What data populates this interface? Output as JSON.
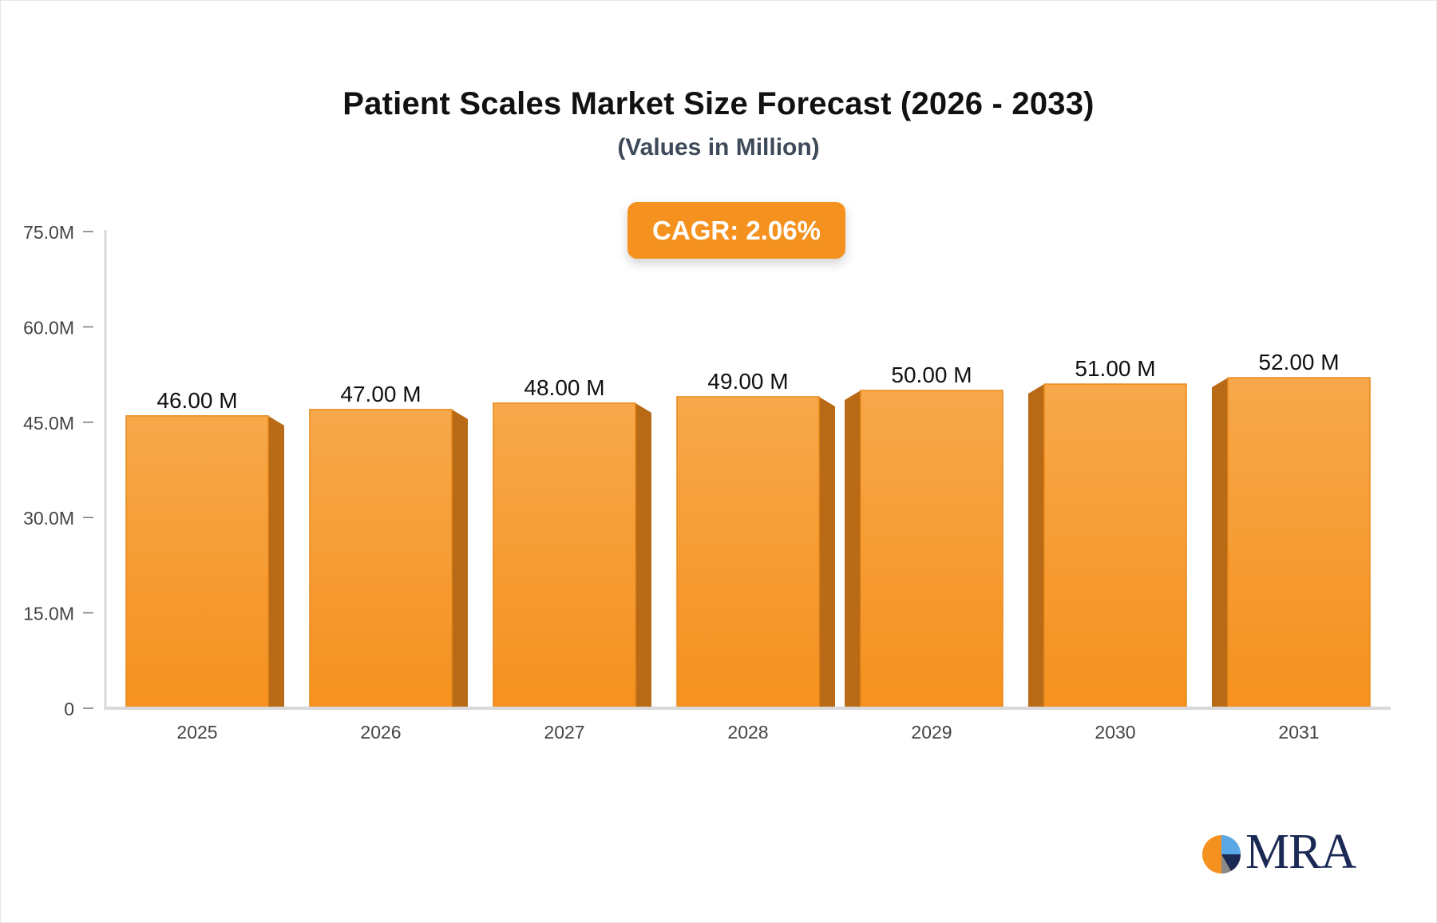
{
  "chart_data": {
    "type": "bar",
    "title": "Patient Scales Market Size Forecast (2026 - 2033)",
    "subtitle": "(Values in Million)",
    "categories": [
      "2025",
      "2026",
      "2027",
      "2028",
      "2029",
      "2030",
      "2031"
    ],
    "values": [
      46,
      47,
      48,
      49,
      50,
      51,
      52
    ],
    "value_labels": [
      "46.00 M",
      "47.00 M",
      "48.00 M",
      "49.00 M",
      "50.00 M",
      "51.00 M",
      "52.00 M"
    ],
    "ylim": [
      0,
      75
    ],
    "y_ticks": [
      0,
      15,
      30,
      45,
      60,
      75
    ],
    "y_tick_labels": [
      "0",
      "15.0M",
      "30.0M",
      "45.0M",
      "60.0M",
      "75.0M"
    ],
    "xlabel": "",
    "ylabel": "",
    "grid": false,
    "legend": "none"
  },
  "badge": {
    "text": "CAGR: 2.06%"
  },
  "logo": {
    "text": "MRA"
  },
  "colors": {
    "bar_top": "#f7a84a",
    "bar_bottom": "#f5911f",
    "bar_side": "#b96a16",
    "bar_edge": "#e8891a",
    "badge": "#f5921f",
    "axis": "#d9d9d9",
    "tick_text": "#444444",
    "label_text": "#111111"
  }
}
